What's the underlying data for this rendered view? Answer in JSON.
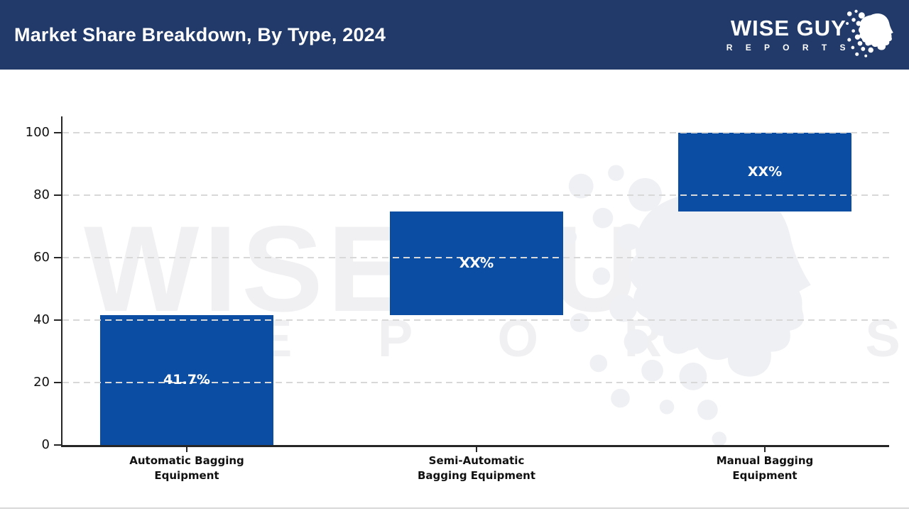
{
  "header": {
    "title": "Market Share Breakdown, By Type, 2024",
    "logo": {
      "line1": "WISE GUY",
      "line2": "R E P O R T S",
      "face_icon": "dotted-head-profile"
    }
  },
  "watermark": {
    "line1": "WISE GUY",
    "line2": "R E P O R T S",
    "face_icon": "dotted-head-profile"
  },
  "chart_data": {
    "type": "bar",
    "subtype": "waterfall-percentage",
    "title": "Market Share Breakdown, By Type, 2024",
    "categories": [
      [
        "Automatic Bagging",
        "Equipment"
      ],
      [
        "Semi-Automatic",
        "Bagging Equipment"
      ],
      [
        "Manual Bagging",
        "Equipment"
      ]
    ],
    "segments": [
      {
        "category": "Automatic Bagging Equipment",
        "start": 0,
        "end": 41.7,
        "value": 41.7,
        "label": "41.7%"
      },
      {
        "category": "Semi-Automatic Bagging Equipment",
        "start": 41.7,
        "end": 74.8,
        "value": 33.1,
        "label": "XX%"
      },
      {
        "category": "Manual Bagging Equipment",
        "start": 74.8,
        "end": 100,
        "value": 25.2,
        "label": "XX%"
      }
    ],
    "xlabel": "",
    "ylabel": "",
    "ylim": [
      0,
      100
    ],
    "yticks": [
      0,
      20,
      40,
      60,
      80,
      100
    ],
    "grid": "horizontal-dashed-over-bars",
    "legend": "none",
    "bar_color": "#0b4da2",
    "bar_label_color": "#ffffff"
  },
  "colors": {
    "header_bg": "#213a69",
    "bar": "#0b4da2",
    "watermark": "#f0f0f3",
    "grid": "#d8d8d8",
    "axis": "#262626"
  }
}
